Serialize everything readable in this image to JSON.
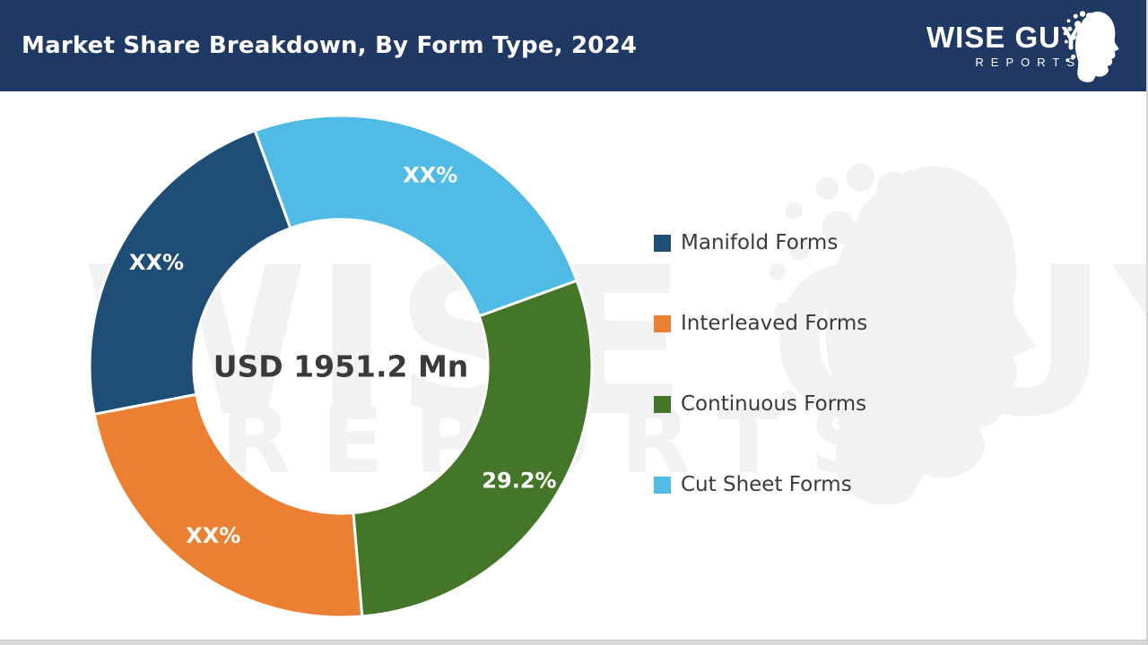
{
  "header": {
    "title": "Market Share Breakdown, By Form Type, 2024",
    "brand": {
      "line1": "WISE GUY",
      "line2": "REPORTS"
    }
  },
  "watermark": {
    "line1": "WISE GUY",
    "line2": "REPORTS"
  },
  "chart_data": {
    "type": "pie",
    "subtype": "donut",
    "title": "Market Share Breakdown, By Form Type, 2024",
    "center_label": "USD 1951.2 Mn",
    "start_angle": 110,
    "direction": "counterclockwise",
    "hole_ratio": 0.586,
    "label_radius_ratio": 0.843,
    "legend_position": "right",
    "slices": [
      {
        "name": "Manifold Forms",
        "value": 22.5,
        "display_label": "XX%",
        "color": "#1e4e75"
      },
      {
        "name": "Interleaved Forms",
        "value": 23.3,
        "display_label": "XX%",
        "color": "#ec8032"
      },
      {
        "name": "Continuous Forms",
        "value": 29.2,
        "display_label": "29.2%",
        "color": "#437628"
      },
      {
        "name": "Cut Sheet Forms",
        "value": 25.0,
        "display_label": "XX%",
        "color": "#50bbe5"
      }
    ]
  },
  "colors": {
    "header_bg": "#1f3864",
    "text_dark": "#3a3a3a",
    "slice_label": "#ffffff",
    "footer_bar": "#d9d9d9",
    "watermark": "#f2f2f2"
  }
}
